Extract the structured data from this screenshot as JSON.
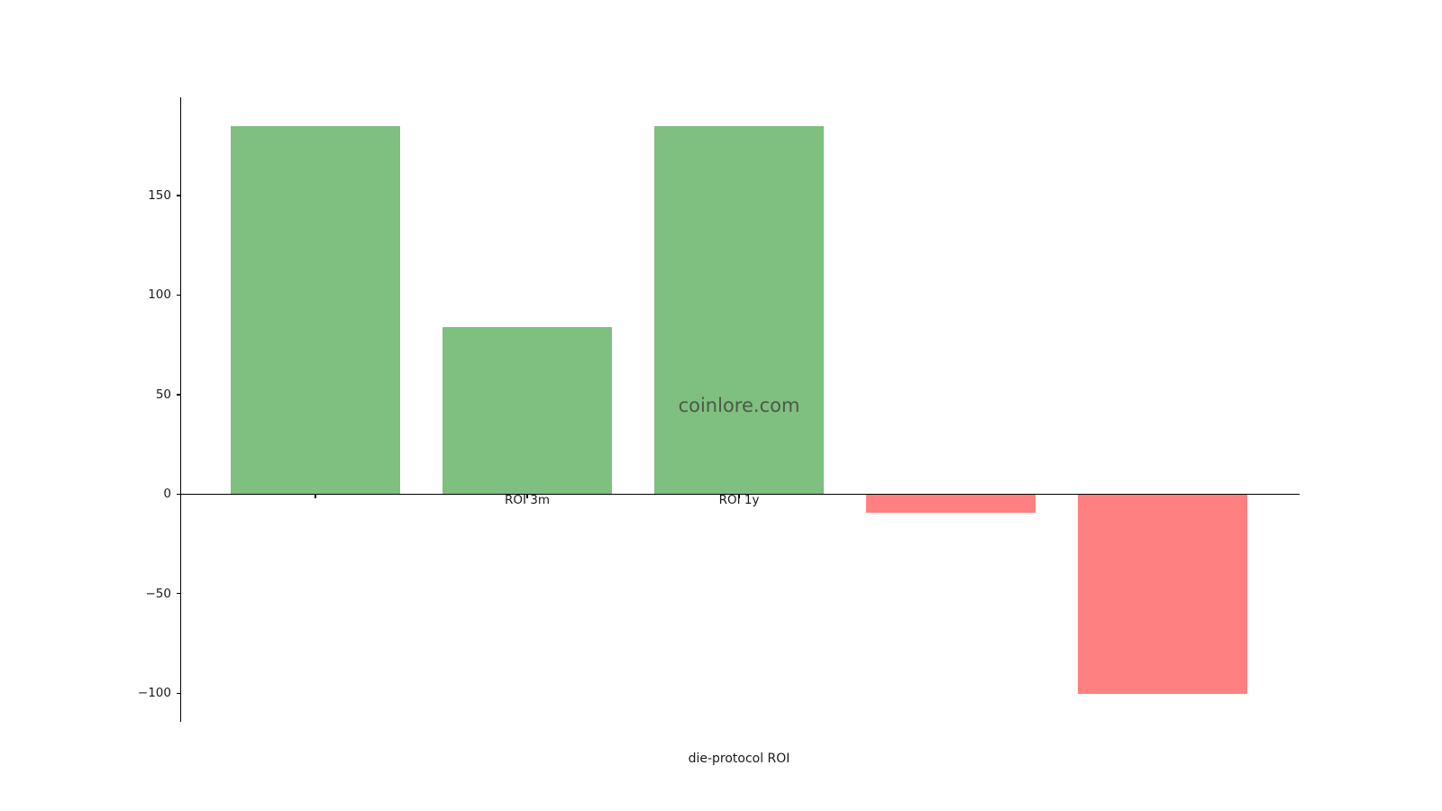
{
  "watermark": {
    "text": "coinlore.com",
    "color": "#41493f"
  },
  "chart_data": {
    "type": "bar",
    "title": "",
    "xlabel": "die-protocol ROI",
    "ylabel": "",
    "categories": [
      "",
      "ROI 3m",
      "ROI 1y",
      "",
      ""
    ],
    "values": [
      185,
      84,
      185,
      -9,
      -100
    ],
    "positive_color": "#7fbf7f",
    "negative_color": "#ff8080",
    "axis_color": "#000000",
    "tick_text_color": "#1a1a1a",
    "ylim": [
      -114.3,
      199.3
    ],
    "yticks": [
      {
        "value": 150,
        "label": "150"
      },
      {
        "value": 100,
        "label": "100"
      },
      {
        "value": 50,
        "label": "50"
      },
      {
        "value": 0,
        "label": "0"
      },
      {
        "value": -50,
        "label": "−50"
      },
      {
        "value": -100,
        "label": "−100"
      }
    ],
    "grid": false,
    "legend": false,
    "bar_label_note": "x tick labels under the two negative bars are covered by the bars"
  }
}
